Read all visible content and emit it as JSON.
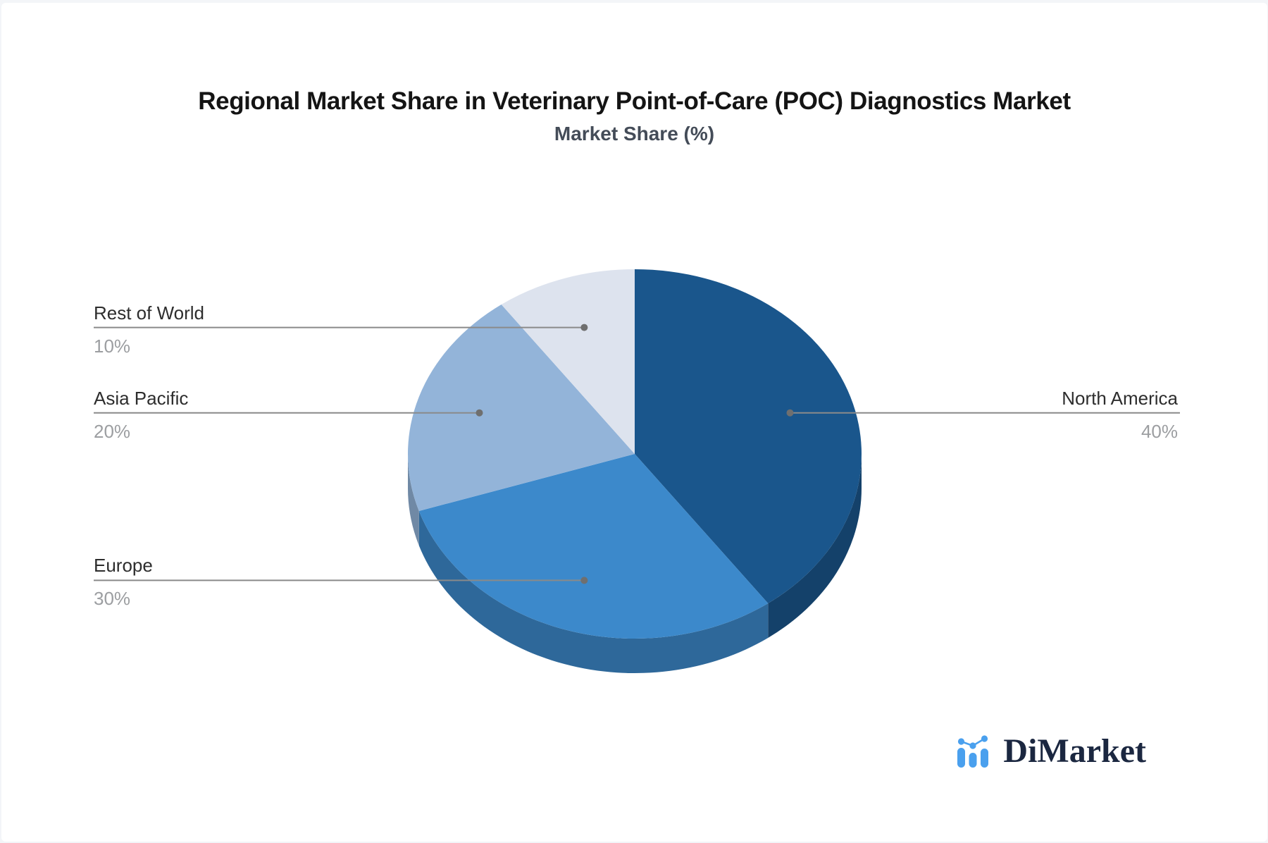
{
  "title": "Regional Market Share in Veterinary Point-of-Care (POC) Diagnostics Market",
  "subtitle": "Market Share (%)",
  "chart_data": {
    "type": "pie",
    "title": "Regional Market Share in Veterinary Point-of-Care (POC) Diagnostics Market",
    "subtitle": "Market Share (%)",
    "unit": "%",
    "effect": "3d",
    "start_angle_deg": 0,
    "direction": "clockwise",
    "legend_position": "none",
    "label_style": "leader-lines",
    "slices": [
      {
        "label": "North America",
        "value": 40,
        "display": "40%",
        "color": "#1A568C"
      },
      {
        "label": "Europe",
        "value": 30,
        "display": "30%",
        "color": "#3C89CB"
      },
      {
        "label": "Asia Pacific",
        "value": 20,
        "display": "20%",
        "color": "#93B4D9"
      },
      {
        "label": "Rest of World",
        "value": 10,
        "display": "10%",
        "color": "#DDE3EE"
      }
    ]
  },
  "brand": {
    "name": "DiMarket"
  },
  "colors": {
    "background": "#ffffff",
    "title_text": "#141414",
    "subtitle_text": "#444c58",
    "label_text": "#2d2d2d",
    "percent_text": "#9c9ea1",
    "leader_line": "#8a8a8a",
    "leader_dot": "#6f6f6f",
    "brand_text": "#1b2740",
    "brand_icon": "#4aa0ee"
  }
}
